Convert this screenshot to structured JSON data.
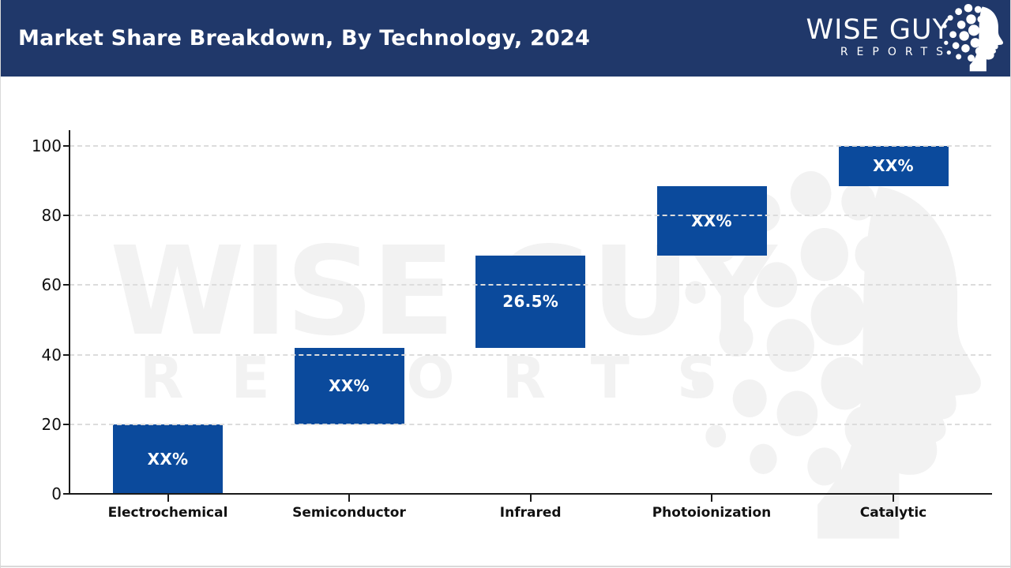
{
  "header": {
    "title": "Market Share Breakdown, By Technology, 2024",
    "logo": {
      "line1": "WISE GUY",
      "line2": "REPORTS"
    }
  },
  "watermark": {
    "line1": "WISE GUY",
    "line2": "REPORTS"
  },
  "colors": {
    "header_navy": "#20386a",
    "bar_blue": "#0b4a9c",
    "grid_gray": "#dcdcdc",
    "axis_black": "#1a1a1a",
    "watermark_gray": "#f2f2f2",
    "label_white": "#ffffff"
  },
  "chart_data": {
    "type": "bar",
    "variant": "floating-waterfall",
    "title": "Market Share Breakdown, By Technology, 2024",
    "categories": [
      "Electrochemical",
      "Semiconductor",
      "Infrared",
      "Photoionization",
      "Catalytic"
    ],
    "series": [
      {
        "name": "Market share (%)",
        "segments": [
          {
            "category": "Electrochemical",
            "start": 0,
            "end": 20,
            "value": 20,
            "label": "XX%"
          },
          {
            "category": "Semiconductor",
            "start": 20,
            "end": 42,
            "value": 22,
            "label": "XX%"
          },
          {
            "category": "Infrared",
            "start": 42,
            "end": 68.5,
            "value": 26.5,
            "label": "26.5%"
          },
          {
            "category": "Photoionization",
            "start": 68.5,
            "end": 88.5,
            "value": 20,
            "label": "XX%"
          },
          {
            "category": "Catalytic",
            "start": 88.5,
            "end": 100,
            "value": 11.5,
            "label": "XX%"
          }
        ]
      }
    ],
    "xlabel": "",
    "ylabel": "",
    "yticks": [
      0,
      20,
      40,
      60,
      80,
      100
    ],
    "ylim": [
      0,
      107
    ],
    "grid": "horizontal-dashed",
    "legend": "none",
    "bar_color": "#0b4a9c"
  }
}
